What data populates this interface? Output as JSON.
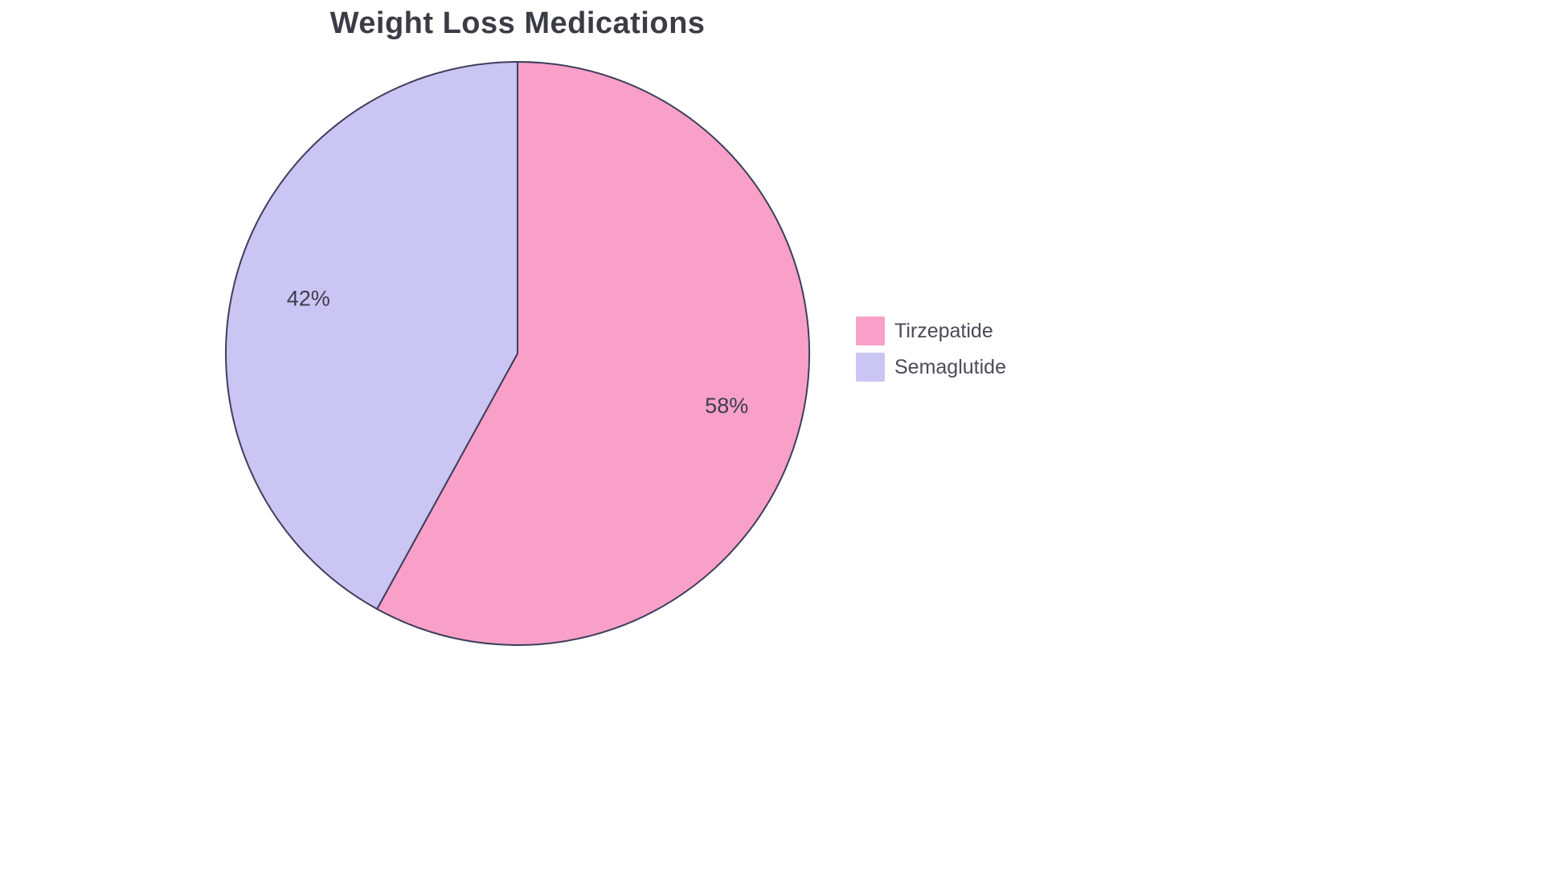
{
  "chart_data": {
    "type": "pie",
    "title": "Weight Loss Medications",
    "categories": [
      "Tirzepatide",
      "Semaglutide"
    ],
    "values": [
      58,
      42
    ],
    "labels": [
      "58%",
      "42%"
    ],
    "colors": [
      "#F9A0C9",
      "#CAC5F3"
    ],
    "stroke_color": "#3E3E5B",
    "stroke_width": 2,
    "legend_position": "right",
    "start_angle_deg": 0,
    "direction": "clockwise",
    "label_text_color": "#3d3d4d",
    "title_text_color": "#3c3c47"
  }
}
